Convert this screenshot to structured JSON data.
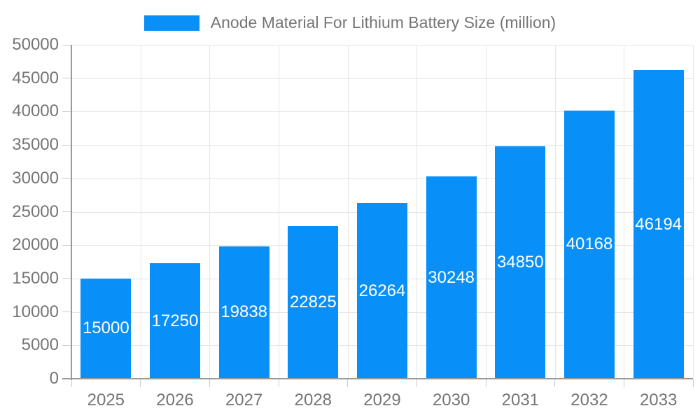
{
  "chart_data": {
    "type": "bar",
    "title": "Anode Material For Lithium Battery Size (million)",
    "legend_position": "top",
    "categories": [
      "2025",
      "2026",
      "2027",
      "2028",
      "2029",
      "2030",
      "2031",
      "2032",
      "2033"
    ],
    "series": [
      {
        "name": "Anode Material For Lithium Battery Size (million)",
        "values": [
          15000,
          17250,
          19838,
          22825,
          26264,
          30248,
          34850,
          40168,
          46194
        ]
      }
    ],
    "bar_value_labels": [
      "15000",
      "17250",
      "19838",
      "22825",
      "26264",
      "30248",
      "34850",
      "40168",
      "46194"
    ],
    "xlabel": "",
    "ylabel": "",
    "ylim": [
      0,
      50000
    ],
    "ytick_step": 5000,
    "ytick_labels": [
      "0",
      "5000",
      "10000",
      "15000",
      "20000",
      "25000",
      "30000",
      "35000",
      "40000",
      "45000",
      "50000"
    ],
    "grid": true,
    "colors": {
      "bar": "#0890F8",
      "bar_label": "#FFFFFF",
      "axis": "#999999",
      "tick": "#CCCCCC",
      "grid": "#E5E5E5",
      "text": "#757575",
      "background": "#FFFFFF"
    }
  }
}
